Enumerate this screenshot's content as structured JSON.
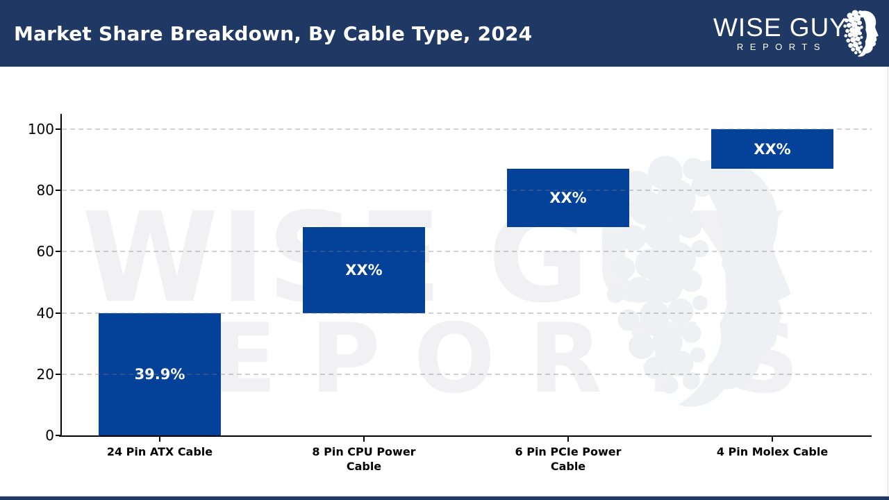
{
  "header": {
    "title": "Market Share Breakdown, By Cable Type, 2024",
    "bg_color": "#1f3864",
    "logo": {
      "line1": "WISE GUY",
      "line2": "REPORTS"
    }
  },
  "watermark": {
    "line1": "WISE GUY",
    "line2": "REPORTS"
  },
  "chart_data": {
    "type": "bar",
    "variant": "floating-waterfall",
    "title": "Market Share Breakdown, By Cable Type, 2024",
    "categories": [
      "24 Pin ATX Cable",
      "8 Pin CPU Power Cable",
      "6 Pin PCIe Power Cable",
      "4 Pin Molex Cable"
    ],
    "category_label_lines": [
      [
        "24 Pin ATX Cable"
      ],
      [
        "8 Pin CPU Power",
        "Cable"
      ],
      [
        "6 Pin PCIe Power",
        "Cable"
      ],
      [
        "4 Pin Molex Cable"
      ]
    ],
    "segments": [
      {
        "category": "24 Pin ATX Cable",
        "start": 0,
        "end": 39.9,
        "label": "39.9%"
      },
      {
        "category": "8 Pin CPU Power Cable",
        "start": 39.9,
        "end": 68,
        "label": "XX%"
      },
      {
        "category": "6 Pin PCIe Power Cable",
        "start": 68,
        "end": 87,
        "label": "XX%"
      },
      {
        "category": "4 Pin Molex Cable",
        "start": 87,
        "end": 100,
        "label": "XX%"
      }
    ],
    "xlabel": "",
    "ylabel": "",
    "ylim": [
      0,
      100
    ],
    "yticks": [
      0,
      20,
      40,
      60,
      80,
      100
    ],
    "grid": "horizontal-dashed",
    "legend": "none",
    "bar_color": "#04429a",
    "bar_label_color": "#ffffff"
  }
}
